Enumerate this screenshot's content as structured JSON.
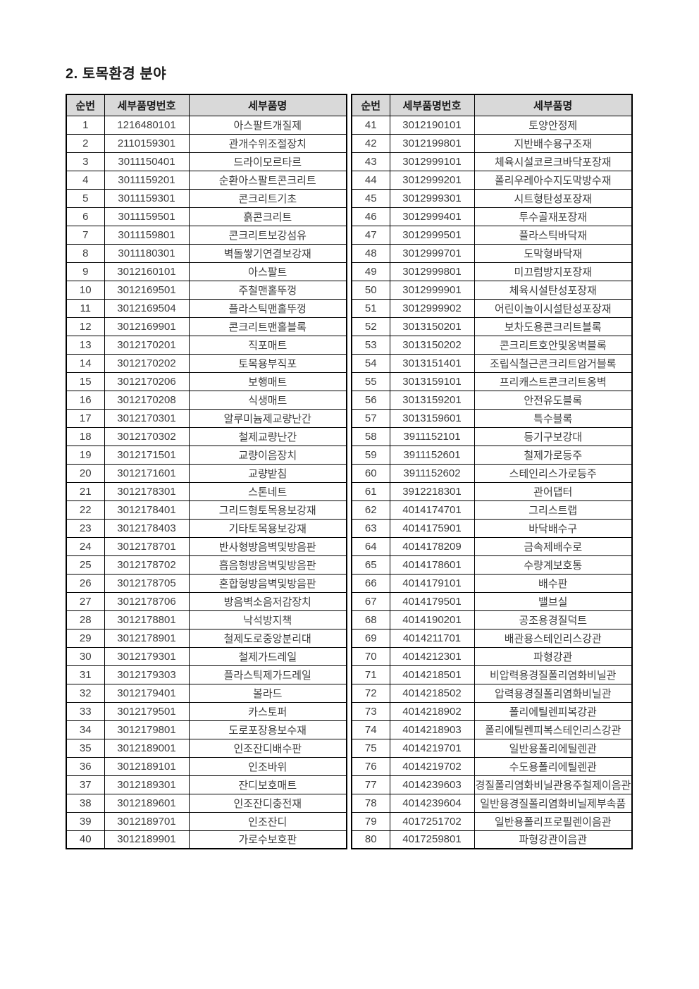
{
  "page": {
    "title": "2. 토목환경 분야"
  },
  "colors": {
    "header_bg": "#d9d9d9",
    "border": "#000000",
    "text": "#3d3d3d"
  },
  "table": {
    "headers": [
      "순번",
      "세부품명번호",
      "세부품명"
    ],
    "left_rows": [
      [
        "1",
        "1216480101",
        "아스팔트개질제"
      ],
      [
        "2",
        "2110159301",
        "관개수위조절장치"
      ],
      [
        "3",
        "3011150401",
        "드라이모르타르"
      ],
      [
        "4",
        "3011159201",
        "순환아스팔트콘크리트"
      ],
      [
        "5",
        "3011159301",
        "콘크리트기초"
      ],
      [
        "6",
        "3011159501",
        "흙콘크리트"
      ],
      [
        "7",
        "3011159801",
        "콘크리트보강섬유"
      ],
      [
        "8",
        "3011180301",
        "벽돌쌓기연결보강재"
      ],
      [
        "9",
        "3012160101",
        "아스팔트"
      ],
      [
        "10",
        "3012169501",
        "주철맨홀뚜껑"
      ],
      [
        "11",
        "3012169504",
        "플라스틱맨홀뚜껑"
      ],
      [
        "12",
        "3012169901",
        "콘크리트맨홀블록"
      ],
      [
        "13",
        "3012170201",
        "직포매트"
      ],
      [
        "14",
        "3012170202",
        "토목용부직포"
      ],
      [
        "15",
        "3012170206",
        "보행매트"
      ],
      [
        "16",
        "3012170208",
        "식생매트"
      ],
      [
        "17",
        "3012170301",
        "알루미늄제교량난간"
      ],
      [
        "18",
        "3012170302",
        "철제교량난간"
      ],
      [
        "19",
        "3012171501",
        "교량이음장치"
      ],
      [
        "20",
        "3012171601",
        "교량받침"
      ],
      [
        "21",
        "3012178301",
        "스톤네트"
      ],
      [
        "22",
        "3012178401",
        "그리드형토목용보강재"
      ],
      [
        "23",
        "3012178403",
        "기타토목용보강재"
      ],
      [
        "24",
        "3012178701",
        "반사형방음벽및방음판"
      ],
      [
        "25",
        "3012178702",
        "흡음형방음벽및방음판"
      ],
      [
        "26",
        "3012178705",
        "혼합형방음벽및방음판"
      ],
      [
        "27",
        "3012178706",
        "방음벽소음저감장치"
      ],
      [
        "28",
        "3012178801",
        "낙석방지책"
      ],
      [
        "29",
        "3012178901",
        "철제도로중앙분리대"
      ],
      [
        "30",
        "3012179301",
        "철제가드레일"
      ],
      [
        "31",
        "3012179303",
        "플라스틱제가드레일"
      ],
      [
        "32",
        "3012179401",
        "볼라드"
      ],
      [
        "33",
        "3012179501",
        "카스토퍼"
      ],
      [
        "34",
        "3012179801",
        "도로포장용보수재"
      ],
      [
        "35",
        "3012189001",
        "인조잔디배수판"
      ],
      [
        "36",
        "3012189101",
        "인조바위"
      ],
      [
        "37",
        "3012189301",
        "잔디보호매트"
      ],
      [
        "38",
        "3012189601",
        "인조잔디충전재"
      ],
      [
        "39",
        "3012189701",
        "인조잔디"
      ],
      [
        "40",
        "3012189901",
        "가로수보호판"
      ]
    ],
    "right_rows": [
      [
        "41",
        "3012190101",
        "토양안정제"
      ],
      [
        "42",
        "3012199801",
        "지반배수용구조재"
      ],
      [
        "43",
        "3012999101",
        "체육시설코르크바닥포장재"
      ],
      [
        "44",
        "3012999201",
        "폴리우레아수지도막방수재"
      ],
      [
        "45",
        "3012999301",
        "시트형탄성포장재"
      ],
      [
        "46",
        "3012999401",
        "투수골재포장재"
      ],
      [
        "47",
        "3012999501",
        "플라스틱바닥재"
      ],
      [
        "48",
        "3012999701",
        "도막형바닥재"
      ],
      [
        "49",
        "3012999801",
        "미끄럼방지포장재"
      ],
      [
        "50",
        "3012999901",
        "체육시설탄성포장재"
      ],
      [
        "51",
        "3012999902",
        "어린이놀이시설탄성포장재"
      ],
      [
        "52",
        "3013150201",
        "보차도용콘크리트블록"
      ],
      [
        "53",
        "3013150202",
        "콘크리트호안및옹벽블록"
      ],
      [
        "54",
        "3013151401",
        "조립식철근콘크리트암거블록"
      ],
      [
        "55",
        "3013159101",
        "프리캐스트콘크리트옹벽"
      ],
      [
        "56",
        "3013159201",
        "안전유도블록"
      ],
      [
        "57",
        "3013159601",
        "특수블록"
      ],
      [
        "58",
        "3911152101",
        "등기구보강대"
      ],
      [
        "59",
        "3911152601",
        "철제가로등주"
      ],
      [
        "60",
        "3911152602",
        "스테인리스가로등주"
      ],
      [
        "61",
        "3912218301",
        "관어댑터"
      ],
      [
        "62",
        "4014174701",
        "그리스트랩"
      ],
      [
        "63",
        "4014175901",
        "바닥배수구"
      ],
      [
        "64",
        "4014178209",
        "금속제배수로"
      ],
      [
        "65",
        "4014178601",
        "수량계보호통"
      ],
      [
        "66",
        "4014179101",
        "배수판"
      ],
      [
        "67",
        "4014179501",
        "밸브실"
      ],
      [
        "68",
        "4014190201",
        "공조용경질덕트"
      ],
      [
        "69",
        "4014211701",
        "배관용스테인리스강관"
      ],
      [
        "70",
        "4014212301",
        "파형강관"
      ],
      [
        "71",
        "4014218501",
        "비압력용경질폴리염화비닐관"
      ],
      [
        "72",
        "4014218502",
        "압력용경질폴리염화비닐관"
      ],
      [
        "73",
        "4014218902",
        "폴리에틸렌피복강관"
      ],
      [
        "74",
        "4014218903",
        "폴리에틸렌피복스테인리스강관"
      ],
      [
        "75",
        "4014219701",
        "일반용폴리에틸렌관"
      ],
      [
        "76",
        "4014219702",
        "수도용폴리에틸렌관"
      ],
      [
        "77",
        "4014239603",
        "경질폴리염화비닐관용주철제이음관"
      ],
      [
        "78",
        "4014239604",
        "일반용경질폴리염화비닐제부속품"
      ],
      [
        "79",
        "4017251702",
        "일반용폴리프로필렌이음관"
      ],
      [
        "80",
        "4017259801",
        "파형강관이음관"
      ]
    ]
  }
}
